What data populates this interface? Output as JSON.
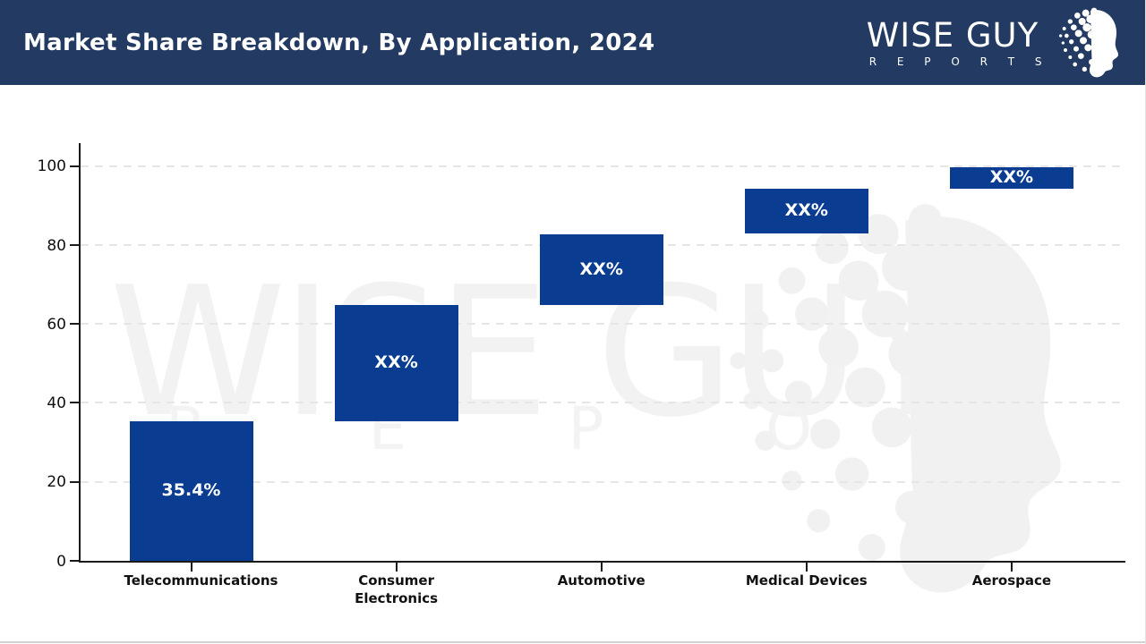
{
  "header": {
    "title": "Market Share Breakdown, By Application, 2024",
    "logo": {
      "wordmark": "WISE GUY",
      "subtext": "R E P O R T S"
    }
  },
  "watermark": {
    "wordmark": "WISE GUY",
    "subtext": "R E P O R T S"
  },
  "colors": {
    "header_bg": "#233a63",
    "title_text": "#ffffff",
    "bar": "#0a3d91",
    "bar_label": "#ffffff",
    "axis": "#1a1a1a",
    "grid": "#e6e6e6",
    "watermark": "#f2f2f2"
  },
  "chart_data": {
    "type": "bar",
    "subtype": "floating-waterfall",
    "title": "Market Share Breakdown, By Application, 2024",
    "categories": [
      "Telecommunications",
      "Consumer Electronics",
      "Automotive",
      "Medical Devices",
      "Aerospace"
    ],
    "segments": [
      {
        "category": "Telecommunications",
        "start": 0,
        "end": 35.4,
        "label": "35.4%"
      },
      {
        "category": "Consumer Electronics",
        "start": 35.4,
        "end": 64.8,
        "label": "XX%"
      },
      {
        "category": "Automotive",
        "start": 64.8,
        "end": 82.6,
        "label": "XX%"
      },
      {
        "category": "Medical Devices",
        "start": 82.9,
        "end": 94.3,
        "label": "XX%"
      },
      {
        "category": "Aerospace",
        "start": 94.3,
        "end": 99.8,
        "label": "XX%"
      }
    ],
    "y_ticks": [
      0,
      20,
      40,
      60,
      80,
      100
    ],
    "ylim": [
      0,
      105.8
    ],
    "xlabel": "",
    "ylabel": "",
    "grid": "horizontal-dashed",
    "legend": "none"
  }
}
